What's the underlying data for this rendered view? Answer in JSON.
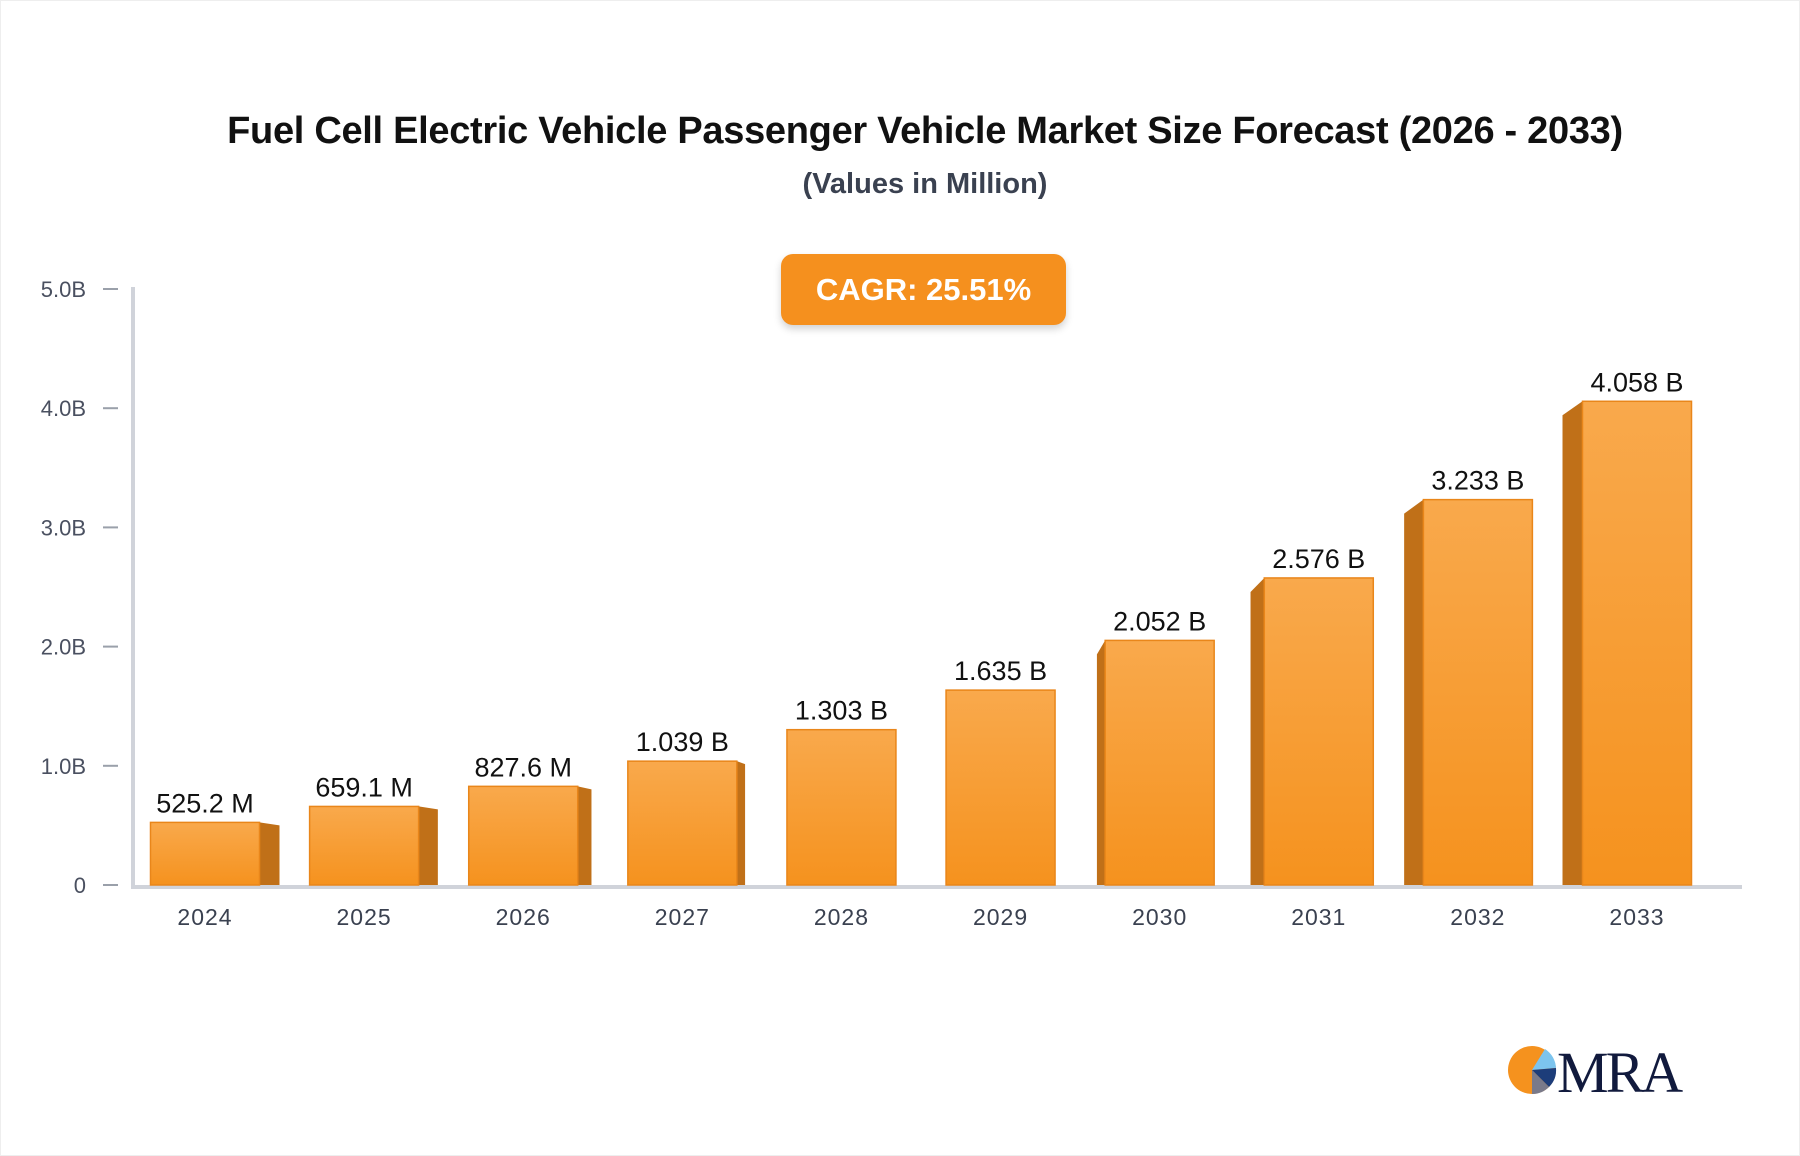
{
  "chart_data": {
    "type": "bar",
    "title": "Fuel Cell Electric Vehicle Passenger Vehicle Market Size Forecast (2026 - 2033)",
    "subtitle": "(Values in Million)",
    "annotation": "CAGR: 25.51%",
    "categories": [
      "2024",
      "2025",
      "2026",
      "2027",
      "2028",
      "2029",
      "2030",
      "2031",
      "2032",
      "2033"
    ],
    "values": [
      0.5252,
      0.6591,
      0.8276,
      1.039,
      1.303,
      1.635,
      2.052,
      2.576,
      3.233,
      4.058
    ],
    "value_unit": "B",
    "data_labels": [
      "525.2 M",
      "659.1 M",
      "827.6 M",
      "1.039 B",
      "1.303 B",
      "1.635 B",
      "2.052 B",
      "2.576 B",
      "3.233 B",
      "4.058 B"
    ],
    "yticks": [
      0,
      1,
      2,
      3,
      4,
      5
    ],
    "ytick_labels": [
      "0",
      "1.0B",
      "2.0B",
      "3.0B",
      "4.0B",
      "5.0B"
    ],
    "ylim": [
      0,
      5
    ],
    "xlabel": "",
    "ylabel": "",
    "grid": false,
    "colors": {
      "bar_top": "#f9a94c",
      "bar_bottom": "#f5921e",
      "bar_side": "#c07018",
      "badge": "#f5901e",
      "axis": "#d0d3da"
    }
  },
  "logo": {
    "text": "MRA"
  }
}
